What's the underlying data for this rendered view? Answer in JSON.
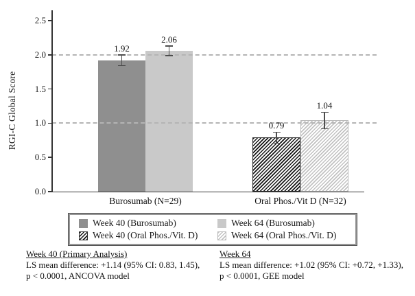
{
  "chart_data": {
    "type": "bar",
    "title": "",
    "xlabel": "",
    "ylabel": "RGI-C Global Score",
    "ylim": [
      0,
      2.5
    ],
    "yticks": [
      0,
      0.5,
      1,
      1.5,
      2,
      2.5
    ],
    "ytick_labels": [
      "0.0",
      "0.5",
      "1.0",
      "1.5",
      "2.0",
      "2.5"
    ],
    "gridlines": [
      1.0,
      2.0
    ],
    "grid_style": "dashed",
    "legend_position": "bottom",
    "categories": [
      "Burosumab (N=29)",
      "Oral Phos./Vit D (N=32)"
    ],
    "bars": [
      {
        "id": "week40-burosumab",
        "series": "Week 40 (Burosumab)",
        "category": "Burosumab (N=29)",
        "value": 1.92,
        "value_label": "1.92",
        "error": 0.08,
        "style": "solid-dark"
      },
      {
        "id": "week64-burosumab",
        "series": "Week 64 (Burosumab)",
        "category": "Burosumab (N=29)",
        "value": 2.06,
        "value_label": "2.06",
        "error": 0.07,
        "style": "solid-light"
      },
      {
        "id": "week40-oral-phos",
        "series": "Week 40 (Oral Phos./Vit. D)",
        "category": "Oral Phos./Vit D (N=32)",
        "value": 0.79,
        "value_label": "0.79",
        "error": 0.08,
        "style": "hatch-dark"
      },
      {
        "id": "week64-oral-phos",
        "series": "Week 64 (Oral Phos./Vit. D)",
        "category": "Oral Phos./Vit D (N=32)",
        "value": 1.04,
        "value_label": "1.04",
        "error": 0.12,
        "style": "hatch-light"
      }
    ],
    "legend": {
      "entries": [
        {
          "id": "week40-burosumab",
          "label": "Week 40 (Burosumab)",
          "style": "solid-dark"
        },
        {
          "id": "week64-burosumab",
          "label": "Week 64 (Burosumab)",
          "style": "solid-light"
        },
        {
          "id": "week40-oral-phos",
          "label": "Week 40 (Oral Phos./Vit. D)",
          "style": "hatch-dark"
        },
        {
          "id": "week64-oral-phos",
          "label": "Week 64 (Oral Phos./Vit. D)",
          "style": "hatch-light"
        }
      ]
    },
    "colors": {
      "solid_dark": "#8f8f8f",
      "solid_light": "#c9c9c9",
      "hatch_dark_line": "#161616",
      "hatch_light_line": "#c2c2c2",
      "gridline": "#b4b4b4",
      "axis": "#333333",
      "error_bar": "#4d4d4d",
      "text": "#111111"
    }
  },
  "annotations": {
    "week40": {
      "heading": "Week 40 (Primary Analysis)",
      "line1": "LS mean difference: +1.14 (95% CI: 0.83, 1.45),",
      "line2": "p < 0.0001, ANCOVA model"
    },
    "week64": {
      "heading": "Week 64",
      "line1": "LS mean difference: +1.02 (95% CI: +0.72, +1.33),",
      "line2": "p < 0.0001, GEE model"
    }
  }
}
